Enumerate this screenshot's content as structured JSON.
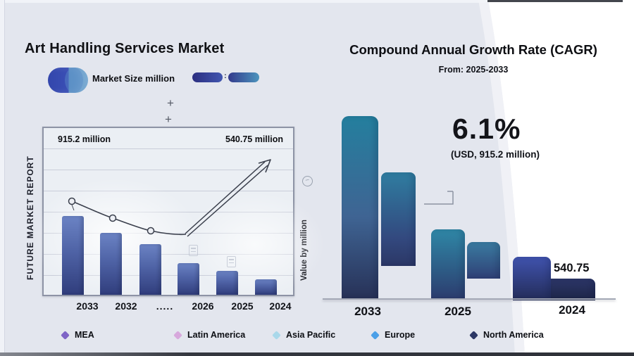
{
  "left_panel": {
    "title": "Art Handling Services Market",
    "icon_label": "Market Size million",
    "watermark_vertical": "FUTURE MARKET REPORT",
    "y_axis_label": "Value by million",
    "top_left_value": "915.2 million",
    "top_right_value": "540.75 million",
    "x_labels": [
      "2033",
      "2032",
      ".....",
      "2026",
      "2025",
      "2024"
    ]
  },
  "right_panel": {
    "title": "Compound Annual Growth Rate (CAGR)",
    "subtitle": "From: 2025-2033",
    "cagr_value": "6.1%",
    "cagr_context": "(USD, 915.2 million)",
    "value_label": "540.75",
    "x_labels": [
      "2033",
      "2025",
      "2024"
    ]
  },
  "legend": {
    "items": [
      {
        "label": "MEA",
        "color": "#7e64c6"
      },
      {
        "label": "Latin America",
        "color": "#d7a8dc"
      },
      {
        "label": "Asia Pacific",
        "color": "#a9d8ea"
      },
      {
        "label": "Europe",
        "color": "#4ba0e8"
      },
      {
        "label": "North America",
        "color": "#2c3765"
      }
    ]
  },
  "colors": {
    "background": "#e3e6ee",
    "left_bar_top": "#6b83c4",
    "left_bar_bottom": "#303d7c",
    "right_bar_teal_top": "#247f9e",
    "right_bar_navy_bottom": "#273157",
    "right_bar_royal_blue": "#4053ae",
    "line_stroke": "#3a3f4c"
  },
  "chart_data": [
    {
      "type": "bar",
      "subtype": "bar-with-line-arrow-overlay",
      "title": "Art Handling Services Market - Market Size million",
      "categories": [
        "2033",
        "2032",
        ".....",
        "2026",
        "2025",
        "2024"
      ],
      "relative_heights_pct": [
        100,
        79,
        64,
        40,
        30,
        20
      ],
      "labeled_values": {
        "2033": "915.2 million",
        "2024": "540.75 million"
      },
      "ylabel": "Value by million",
      "legend_position": "bottom",
      "grid": true,
      "note": "stylized infographic; bars descend left-to-right, line with 3 markers descends then arrow rises toward 540.75 million label"
    },
    {
      "type": "bar",
      "subtype": "grouped",
      "title": "Compound Annual Growth Rate (CAGR) From: 2025-2033",
      "categories": [
        "2033",
        "2025",
        "2024"
      ],
      "series": [
        {
          "name": "primary",
          "relative_heights_pct": [
            100,
            38,
            24
          ]
        },
        {
          "name": "secondary",
          "relative_heights_pct": [
            51,
            20,
            12
          ]
        }
      ],
      "annotations": [
        "6.1%",
        "(USD, 915.2 million)",
        "540.75"
      ],
      "grid": false,
      "note": "stylized; 540.75 attached to 2024 group"
    }
  ]
}
